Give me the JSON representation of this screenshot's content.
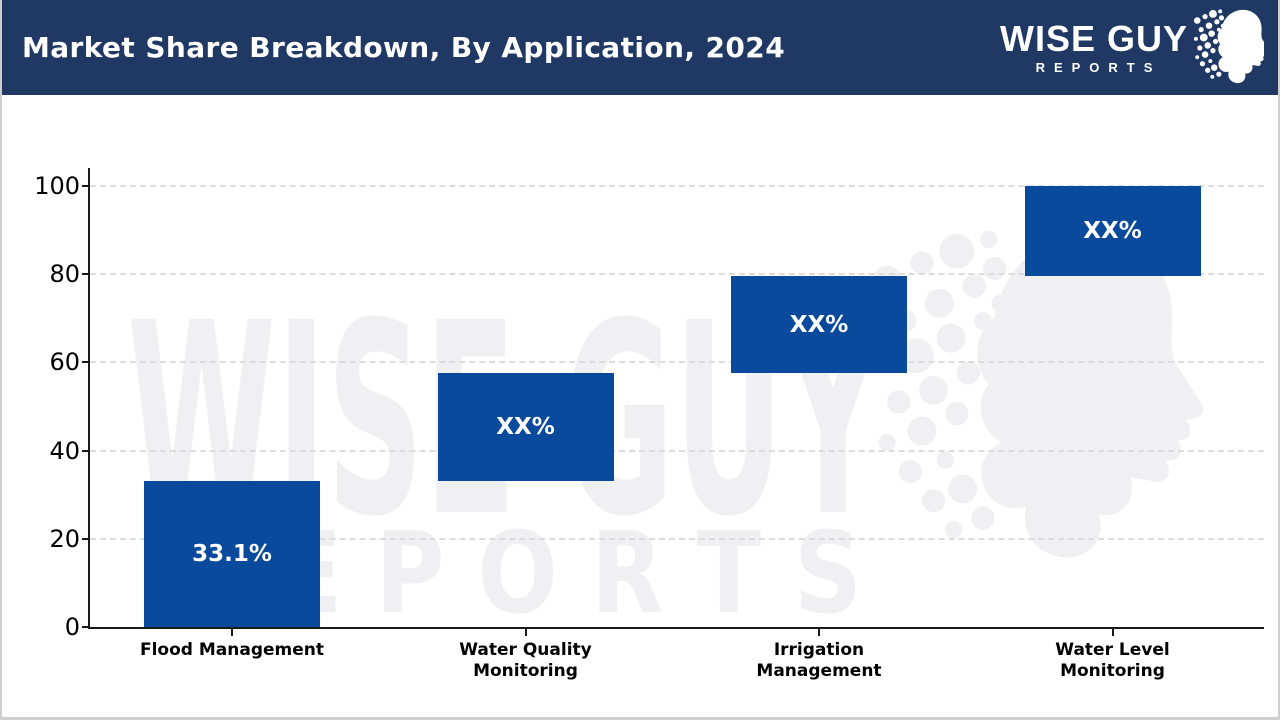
{
  "header": {
    "title": "Market Share Breakdown, By Application, 2024",
    "logo": {
      "line1": "WISE GUY",
      "line2": "REPORTS"
    }
  },
  "watermark": {
    "line1": "WISE GUY",
    "line2": "REPORTS"
  },
  "colors": {
    "header_bg": "#1f3864",
    "bar_blue": "#0a4a9c",
    "grid_gray": "#dcdcdc",
    "watermark_gray": "#f0f0f3",
    "axis_black": "#1a1a1a",
    "label_white": "#ffffff"
  },
  "chart_data": {
    "type": "bar",
    "subtype": "floating-waterfall",
    "title": "Market Share Breakdown, By Application, 2024",
    "categories": [
      "Flood Management",
      "Water Quality Monitoring",
      "Irrigation Management",
      "Water Level Monitoring"
    ],
    "category_lines": [
      [
        "Flood Management"
      ],
      [
        "Water Quality",
        "Monitoring"
      ],
      [
        "Irrigation",
        "Management"
      ],
      [
        "Water Level",
        "Monitoring"
      ]
    ],
    "segments": [
      {
        "category": "Flood Management",
        "start": 0,
        "end": 33.1,
        "label": "33.1%"
      },
      {
        "category": "Water Quality Monitoring",
        "start": 33.1,
        "end": 57.6,
        "label": "XX%"
      },
      {
        "category": "Irrigation Management",
        "start": 57.6,
        "end": 79.5,
        "label": "XX%"
      },
      {
        "category": "Water Level Monitoring",
        "start": 79.7,
        "end": 100,
        "label": "XX%"
      }
    ],
    "yticks": [
      0,
      20,
      40,
      60,
      80,
      100
    ],
    "ylim": [
      0,
      105
    ],
    "xlabel": "",
    "ylabel": "",
    "grid": "horizontal-dashed",
    "legend": "none",
    "bar_color": "#0a4a9c",
    "bar_label_color": "#ffffff"
  }
}
